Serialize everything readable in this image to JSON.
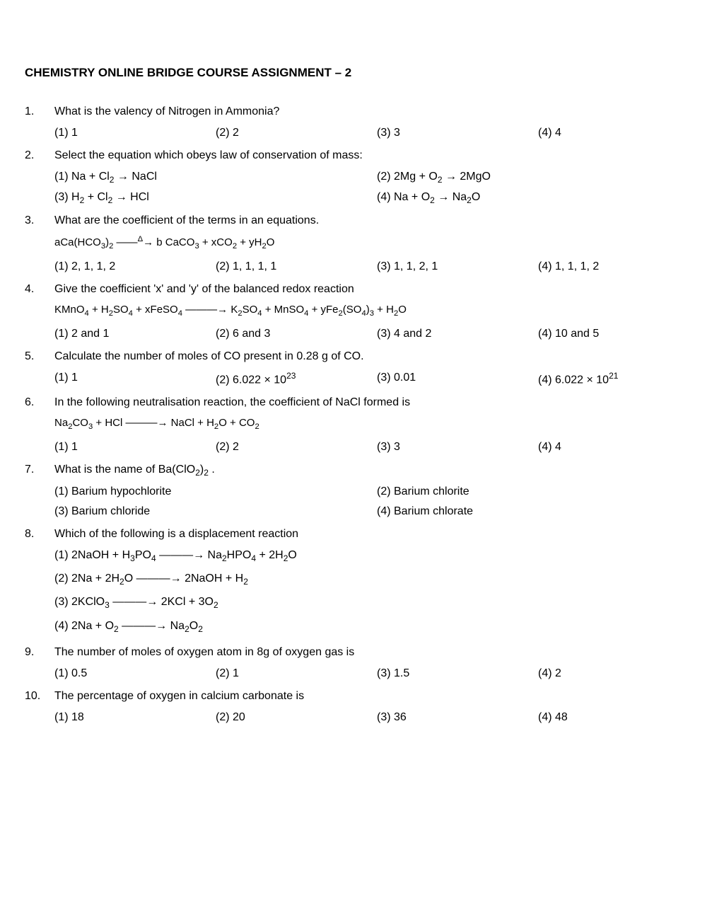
{
  "title": "CHEMISTRY ONLINE BRIDGE COURSE ASSIGNMENT – 2",
  "text_color": "#000000",
  "background_color": "#ffffff",
  "base_fontsize": 16,
  "title_fontsize": 17,
  "question_number_width": 42,
  "questions": [
    {
      "number": "1.",
      "text": "What is the valency of Nitrogen in Ammonia?",
      "options_layout": "quarter",
      "options": [
        {
          "label": "(1) 1"
        },
        {
          "label": "(2) 2"
        },
        {
          "label": "(3) 3"
        },
        {
          "label": "(4) 4"
        }
      ]
    },
    {
      "number": "2.",
      "text": "Select the equation which obeys law of conservation of mass:",
      "options_layout": "half",
      "options": [
        {
          "html": "(1) Na + Cl<sub>2</sub> → NaCl"
        },
        {
          "html": "(2) 2Mg + O<sub>2</sub> → 2MgO"
        },
        {
          "html": "(3) H<sub>2</sub> + Cl<sub>2</sub> → HCl"
        },
        {
          "html": "(4) Na + O<sub>2</sub> → Na<sub>2</sub>O"
        }
      ]
    },
    {
      "number": "3.",
      "text": "What are the coefficient of the terms in an equations.",
      "equation_html": "aCa(HCO<sub>3</sub>)<sub>2</sub> ——<sup>Δ</sup>→ b CaCO<sub>3</sub> + xCO<sub>2</sub> + yH<sub>2</sub>O",
      "options_layout": "quarter",
      "options": [
        {
          "label": "(1) 2, 1, 1, 2"
        },
        {
          "label": "(2) 1, 1, 1, 1"
        },
        {
          "label": "(3) 1, 1, 2, 1"
        },
        {
          "label": "(4) 1, 1, 1, 2"
        }
      ]
    },
    {
      "number": "4.",
      "text": "Give the coefficient 'x' and 'y' of the balanced redox reaction",
      "equation_html": "KMnO<sub>4</sub> + H<sub>2</sub>SO<sub>4</sub> + xFeSO<sub>4</sub> ———→ K<sub>2</sub>SO<sub>4</sub> + MnSO<sub>4</sub> + yFe<sub>2</sub>(SO<sub>4</sub>)<sub>3</sub> + H<sub>2</sub>O",
      "options_layout": "quarter",
      "options": [
        {
          "label": "(1) 2 and 1"
        },
        {
          "label": "(2) 6 and 3"
        },
        {
          "label": "(3) 4 and 2"
        },
        {
          "label": "(4) 10 and 5"
        }
      ]
    },
    {
      "number": "5.",
      "text": "Calculate the number of moles of CO present in 0.28 g of CO.",
      "options_layout": "quarter",
      "options": [
        {
          "label": "(1) 1"
        },
        {
          "html": "(2) 6.022 × 10<sup>23</sup>"
        },
        {
          "label": "(3) 0.01"
        },
        {
          "html": "(4) 6.022 × 10<sup>21</sup>"
        }
      ]
    },
    {
      "number": "6.",
      "text_html": "In the following neutralisation reaction, the coefficient of NaCl  formed is",
      "equation_html": "Na<sub>2</sub>CO<sub>3</sub> + HCl ———→ NaCl + H<sub>2</sub>O + CO<sub>2</sub>",
      "options_layout": "quarter",
      "options": [
        {
          "label": "(1) 1"
        },
        {
          "label": "(2) 2"
        },
        {
          "label": "(3) 3"
        },
        {
          "label": "(4) 4"
        }
      ]
    },
    {
      "number": "7.",
      "text_html": "What is the name of Ba(ClO<sub>2</sub>)<sub>2</sub> .",
      "options_layout": "half",
      "options": [
        {
          "label": "(1) Barium hypochlorite"
        },
        {
          "label": "(2) Barium chlorite"
        },
        {
          "label": "(3) Barium chloride"
        },
        {
          "label": "(4) Barium chlorate"
        }
      ]
    },
    {
      "number": "8.",
      "text": "Which of the following is a displacement reaction",
      "options_layout": "full",
      "options": [
        {
          "html": "(1) 2NaOH + H<sub>3</sub>PO<sub>4</sub> ———→ Na<sub>2</sub>HPO<sub>4</sub> + 2H<sub>2</sub>O"
        },
        {
          "html": "(2) 2Na + 2H<sub>2</sub>O ———→ 2NaOH + H<sub>2</sub>"
        },
        {
          "html": "(3) 2KClO<sub>3</sub> ———→ 2KCl + 3O<sub>2</sub>"
        },
        {
          "html": "(4) 2Na + O<sub>2</sub> ———→ Na<sub>2</sub>O<sub>2</sub>"
        }
      ]
    },
    {
      "number": "9.",
      "text": "The number of moles of oxygen atom in 8g of oxygen gas is",
      "options_layout": "quarter",
      "options": [
        {
          "label": "(1) 0.5"
        },
        {
          "label": "(2) 1"
        },
        {
          "label": "(3) 1.5"
        },
        {
          "label": "(4) 2"
        }
      ]
    },
    {
      "number": "10.",
      "text": "The percentage of oxygen in calcium carbonate is",
      "options_layout": "quarter",
      "options": [
        {
          "label": "(1) 18"
        },
        {
          "label": "(2) 20"
        },
        {
          "label": "(3) 36"
        },
        {
          "label": "(4) 48"
        }
      ]
    }
  ]
}
